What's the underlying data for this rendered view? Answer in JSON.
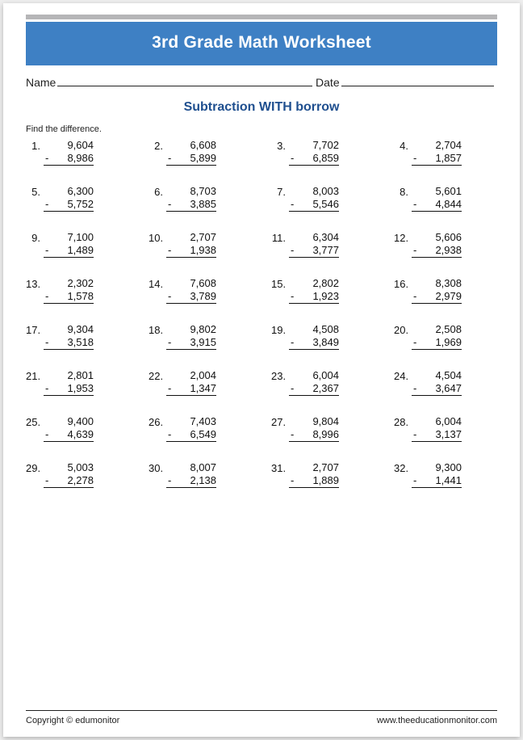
{
  "header": {
    "title": "3rd Grade Math Worksheet",
    "name_label": "Name",
    "date_label": "Date",
    "subtitle": "Subtraction WITH borrow",
    "instruction": "Find the difference.",
    "banner_bg": "#3e80c4",
    "banner_text": "#ffffff",
    "subtitle_color": "#1f4f8f"
  },
  "layout": {
    "columns": 4,
    "rows": 8,
    "problem_font": "Trebuchet MS",
    "problem_fontsize": 13,
    "text_color": "#111111",
    "page_bg": "#ffffff"
  },
  "problems": [
    {
      "n": "1.",
      "a": "9,604",
      "b": "8,986"
    },
    {
      "n": "2.",
      "a": "6,608",
      "b": "5,899"
    },
    {
      "n": "3.",
      "a": "7,702",
      "b": "6,859"
    },
    {
      "n": "4.",
      "a": "2,704",
      "b": "1,857"
    },
    {
      "n": "5.",
      "a": "6,300",
      "b": "5,752"
    },
    {
      "n": "6.",
      "a": "8,703",
      "b": "3,885"
    },
    {
      "n": "7.",
      "a": "8,003",
      "b": "5,546"
    },
    {
      "n": "8.",
      "a": "5,601",
      "b": "4,844"
    },
    {
      "n": "9.",
      "a": "7,100",
      "b": "1,489"
    },
    {
      "n": "10.",
      "a": "2,707",
      "b": "1,938"
    },
    {
      "n": "11.",
      "a": "6,304",
      "b": "3,777"
    },
    {
      "n": "12.",
      "a": "5,606",
      "b": "2,938"
    },
    {
      "n": "13.",
      "a": "2,302",
      "b": "1,578"
    },
    {
      "n": "14.",
      "a": "7,608",
      "b": "3,789"
    },
    {
      "n": "15.",
      "a": "2,802",
      "b": "1,923"
    },
    {
      "n": "16.",
      "a": "8,308",
      "b": "2,979"
    },
    {
      "n": "17.",
      "a": "9,304",
      "b": "3,518"
    },
    {
      "n": "18.",
      "a": "9,802",
      "b": "3,915"
    },
    {
      "n": "19.",
      "a": "4,508",
      "b": "3,849"
    },
    {
      "n": "20.",
      "a": "2,508",
      "b": "1,969"
    },
    {
      "n": "21.",
      "a": "2,801",
      "b": "1,953"
    },
    {
      "n": "22.",
      "a": "2,004",
      "b": "1,347"
    },
    {
      "n": "23.",
      "a": "6,004",
      "b": "2,367"
    },
    {
      "n": "24.",
      "a": "4,504",
      "b": "3,647"
    },
    {
      "n": "25.",
      "a": "9,400",
      "b": "4,639"
    },
    {
      "n": "26.",
      "a": "7,403",
      "b": "6,549"
    },
    {
      "n": "27.",
      "a": "9,804",
      "b": "8,996"
    },
    {
      "n": "28.",
      "a": "6,004",
      "b": "3,137"
    },
    {
      "n": "29.",
      "a": "5,003",
      "b": "2,278"
    },
    {
      "n": "30.",
      "a": "8,007",
      "b": "2,138"
    },
    {
      "n": "31.",
      "a": "2,707",
      "b": "1,889"
    },
    {
      "n": "32.",
      "a": "9,300",
      "b": "1,441"
    }
  ],
  "footer": {
    "left": "Copyright © edumonitor",
    "right": "www.theeducationmonitor.com"
  }
}
